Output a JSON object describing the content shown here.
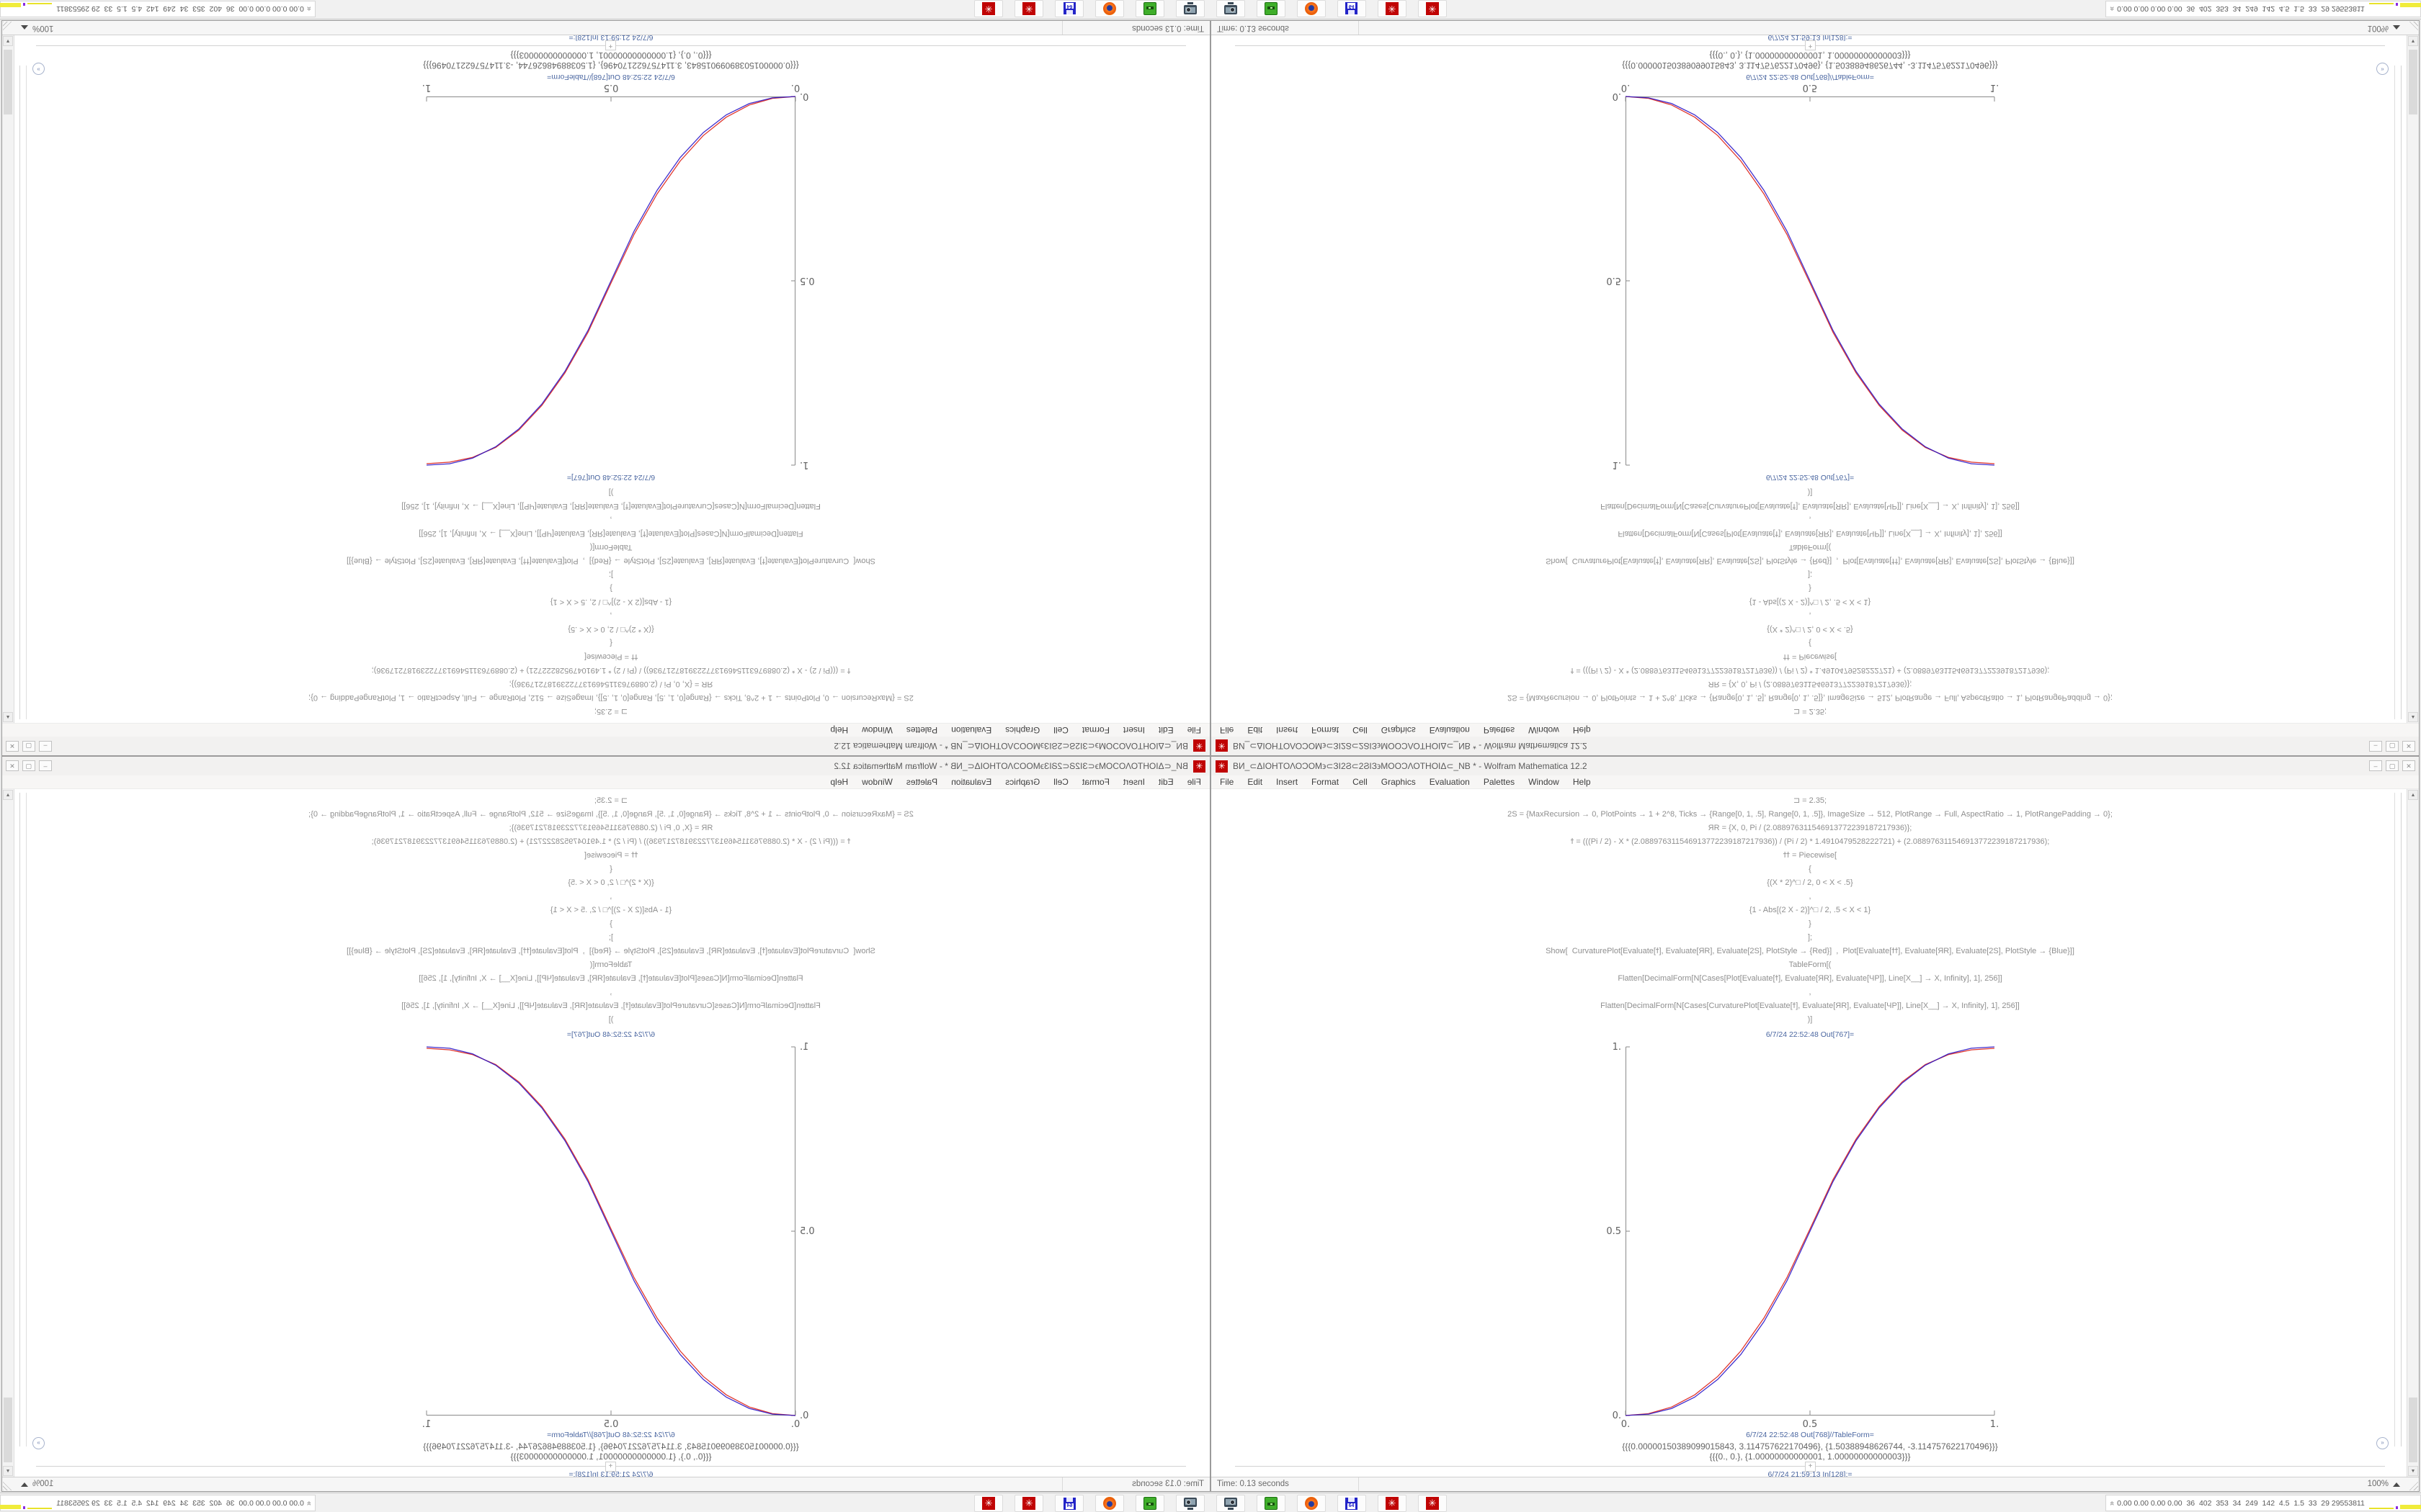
{
  "window": {
    "title": "ВИ_⊂ΔΙΟΗΤΟΛΟϽΟΜ϶⊂ЗΙ2Ϩ⊂2ϨΙЗ϶ΜΟΟϽΛΟΤΗΟΙΔ⊂_ΝΒ * - Wolfram Mathematica 12.2",
    "menu": [
      "File",
      "Edit",
      "Insert",
      "Format",
      "Cell",
      "Graphics",
      "Evaluation",
      "Palettes",
      "Window",
      "Help"
    ],
    "controls": {
      "minimize": "–",
      "maximize": "▢",
      "close": "✕"
    },
    "app_icon_glyph": "✳"
  },
  "notebook": {
    "plus_marker": "+",
    "elision_glyph": "»",
    "cells": [
      {
        "type": "input",
        "text": "⊐ = 2.35;"
      },
      {
        "type": "input",
        "text": "2S = {MaxRecursion → 0, PlotPoints → 1 + 2^8, Ticks → {Range[0, 1, .5], Range[0, 1, .5]}, ImageSize → 512, PlotRange → Full, AspectRatio → 1, PlotRangePadding → 0};"
      },
      {
        "type": "input",
        "text": "ЯR = {X, 0, Pi / (2.088976311546913772239187217936)};"
      },
      {
        "type": "input",
        "text": "ϯ = (((Pi / 2) - X * (2.088976311546913772239187217936)) / (Pi / 2) * 1.4910479528222721) + (2.088976311546913772239187217936);"
      },
      {
        "type": "input",
        "text": "ϯϯ = Piecewise["
      },
      {
        "type": "input",
        "text": "{"
      },
      {
        "type": "input",
        "text": "{(X * 2)^□ / 2, 0 < X < .5}"
      },
      {
        "type": "input",
        "text": ","
      },
      {
        "type": "input",
        "text": "{1 - Abs[(2 X - 2)]^□ / 2, .5 < X < 1}"
      },
      {
        "type": "input",
        "text": "}"
      },
      {
        "type": "input",
        "text": "];"
      },
      {
        "type": "input",
        "text": "Show[  CurvaturePlot[Evaluate[ϯ], Evaluate[ЯR], Evaluate[2S], PlotStyle → {Red}]  ,  Plot[Evaluate[ϯϯ], Evaluate[ЯR], Evaluate[2S], PlotStyle → {Blue}]]"
      },
      {
        "type": "input",
        "text": "TableForm[("
      },
      {
        "type": "input",
        "text": "Flatten[DecimalForm[N[Cases[Plot[Evaluate[ϯ], Evaluate[ЯR], Evaluate[ЧP]], Line[X__] → X, Infinity], 1], 256]]"
      },
      {
        "type": "input",
        "text": ","
      },
      {
        "type": "input",
        "text": "Flatten[DecimalForm[N[Cases[CurvaturePlot[Evaluate[ϯ], Evaluate[ЯR], Evaluate[ЧP]], Line[X__] → X, Infinity], 1], 256]]"
      },
      {
        "type": "input",
        "text": ")]"
      },
      {
        "type": "label",
        "text": "6/7/24 22:52:48 Out[767]="
      },
      {
        "type": "plot"
      },
      {
        "type": "label",
        "text": "6/7/24 22:52:48 Out[768]//TableForm="
      },
      {
        "type": "output",
        "text": "{{{0.00000150389099015843, 3.114757622170496}, {1.50388948626744, -3.114757622170496}}}"
      },
      {
        "type": "output",
        "text": "{{{0., 0.}, {1.00000000000001, 1.00000000000003}}}"
      },
      {
        "type": "divider"
      },
      {
        "type": "label",
        "text": "6/7/24 21:59:13 In[128]:="
      }
    ]
  },
  "chart_data": {
    "type": "line",
    "title": "",
    "xlabel": "",
    "ylabel": "",
    "xlim": [
      0,
      1
    ],
    "ylim": [
      0,
      1
    ],
    "grid": false,
    "legend": "none",
    "image_size": 512,
    "axes_color": "#8a8a8a",
    "x": [
      0,
      0.0625,
      0.125,
      0.1875,
      0.25,
      0.3125,
      0.375,
      0.4375,
      0.5,
      0.5625,
      0.625,
      0.6875,
      0.75,
      0.8125,
      0.875,
      0.9375,
      1
    ],
    "series": [
      {
        "name": "CurvaturePlot (Red)",
        "color": "#dd2017",
        "values": [
          0,
          0.005,
          0.023,
          0.056,
          0.106,
          0.175,
          0.264,
          0.374,
          0.506,
          0.64,
          0.75,
          0.838,
          0.905,
          0.952,
          0.979,
          0.992,
          0.996
        ]
      },
      {
        "name": "Plot piecewise (Blue)",
        "color": "#2b17c8",
        "values": [
          0,
          0.0038,
          0.0192,
          0.0499,
          0.0981,
          0.1657,
          0.2543,
          0.3653,
          0.5,
          0.6347,
          0.7457,
          0.8343,
          0.9019,
          0.9502,
          0.9808,
          0.9962,
          1
        ]
      }
    ],
    "ticks": {
      "x": [
        {
          "v": 0,
          "label": "0."
        },
        {
          "v": 0.5,
          "label": "0.5"
        },
        {
          "v": 1,
          "label": "1."
        }
      ],
      "y": [
        {
          "v": 0,
          "label": "0."
        },
        {
          "v": 0.5,
          "label": "0.5"
        },
        {
          "v": 1,
          "label": "1."
        }
      ]
    }
  },
  "status_bar": {
    "time": "Time: 0.13 seconds",
    "zoom": "100%"
  },
  "taskbar": {
    "icons": [
      {
        "name": "display-capture-icon",
        "kind": "monitor"
      },
      {
        "name": "green-app-icon",
        "kind": "green"
      },
      {
        "name": "firefox-icon",
        "kind": "firefox"
      },
      {
        "name": "floppy-64-icon",
        "kind": "floppy",
        "label": "64"
      },
      {
        "name": "mathematica-icon",
        "kind": "spikey"
      },
      {
        "name": "mathematica-icon-2",
        "kind": "spikey"
      }
    ],
    "spikey_glyph": "✳"
  },
  "tray": {
    "chevron_glyph": "«",
    "numbers": "0.00 0.00 0.00 0.00  36  402  353  34  249  142  4.5  1.5  33  29 29553811",
    "spark": [
      {
        "c": "#e8e32a",
        "w": 34,
        "h": 2
      },
      {
        "c": "#8a2be2",
        "w": 3,
        "h": 4
      },
      {
        "c": "#f0ec3a",
        "w": 40,
        "h": 6
      },
      {
        "c": "#8a5a1e",
        "w": 34,
        "h": 11
      },
      {
        "c": "#1f4fa0",
        "w": 40,
        "h": 15
      },
      {
        "c": "#8a5a1e",
        "w": 36,
        "h": 11
      },
      {
        "c": "#2fbf2f",
        "w": 40,
        "h": 3
      }
    ]
  }
}
